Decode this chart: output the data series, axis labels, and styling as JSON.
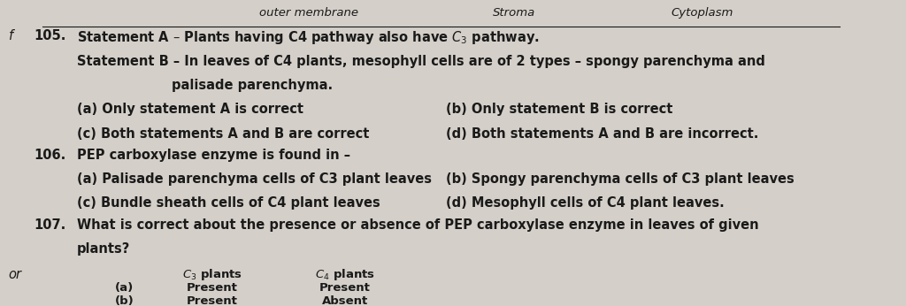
{
  "bg_color": "#d4cfc8",
  "text_color": "#1a1a1a",
  "title_top_left": "outer membrane",
  "title_stroma": "Stroma",
  "title_cytoplasm": "Cytoplasm",
  "q105_label": "105.",
  "q105_statA": "Statement A – Plants having C4 pathway also have $C_3$ pathway.",
  "q105_statB_line1": "Statement B – In leaves of C4 plants, mesophyll cells are of 2 types – spongy parenchyma and",
  "q105_statB_line2": "palisade parenchyma.",
  "q105_a": "(a) Only statement A is correct",
  "q105_b": "(b) Only statement B is correct",
  "q105_c": "(c) Both statements A and B are correct",
  "q105_d": "(d) Both statements A and B are incorrect.",
  "q106_label": "106.",
  "q106_stem": "PEP carboxylase enzyme is found in –",
  "q106_a": "(a) Palisade parenchyma cells of C3 plant leaves",
  "q106_b": "(b) Spongy parenchyma cells of C3 plant leaves",
  "q106_c": "(c) Bundle sheath cells of C4 plant leaves",
  "q106_d": "(d) Mesophyll cells of C4 plant leaves.",
  "q107_label": "107.",
  "q107_stem_line1": "What is correct about the presence or absence of PEP carboxylase enzyme in leaves of given",
  "q107_stem_line2": "plants?",
  "table_header": [
    "",
    "$C_3$ plants",
    "$C_4$ plants"
  ],
  "table_rows": [
    [
      "(a)",
      "Present",
      "Present"
    ],
    [
      "(b)",
      "Present",
      "Absent"
    ]
  ],
  "font_size_main": 10.5,
  "font_size_small": 9.5
}
